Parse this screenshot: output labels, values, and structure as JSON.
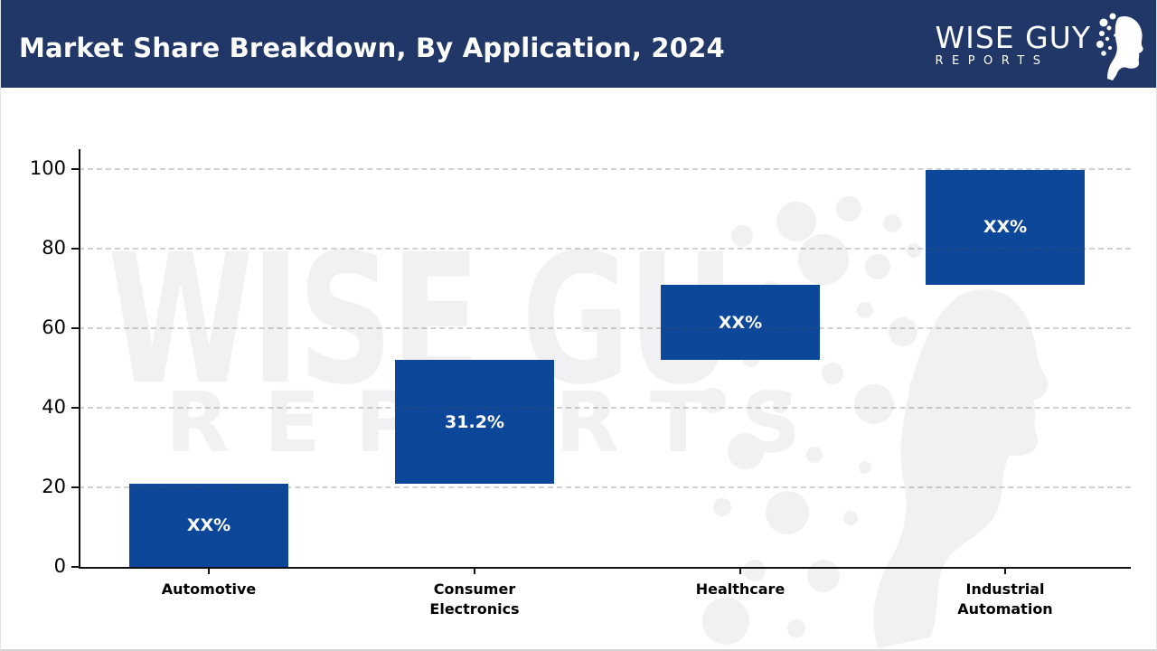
{
  "header": {
    "title": "Market Share Breakdown, By Application, 2024",
    "bg_color": "#203768",
    "logo": {
      "line1": "WISE GUY",
      "line2": "REPORTS"
    }
  },
  "watermark": {
    "line1": "WISE GU",
    "line2": "REPORTS",
    "color": "#f1f1f3"
  },
  "chart_data": {
    "type": "bar",
    "subtype": "waterfall",
    "title": "Market Share Breakdown, By Application, 2024",
    "xlabel": "",
    "ylabel": "",
    "categories": [
      "Automotive",
      "Consumer Electronics",
      "Healthcare",
      "Industrial Automation"
    ],
    "segments": [
      {
        "category": "Automotive",
        "start": 0,
        "end": 20.8,
        "label": "XX%"
      },
      {
        "category": "Consumer Electronics",
        "start": 20.8,
        "end": 52.0,
        "label": "31.2%"
      },
      {
        "category": "Healthcare",
        "start": 52.0,
        "end": 70.8,
        "label": "XX%"
      },
      {
        "category": "Industrial Automation",
        "start": 70.8,
        "end": 99.8,
        "label": "XX%"
      }
    ],
    "y_ticks": [
      0,
      20,
      40,
      60,
      80,
      100
    ],
    "ylim": [
      0,
      105
    ],
    "bar_color": "#0c479a",
    "grid": "horizontal-dashed",
    "grid_color": "rgba(80,80,80,0.27)",
    "legend": "none"
  }
}
